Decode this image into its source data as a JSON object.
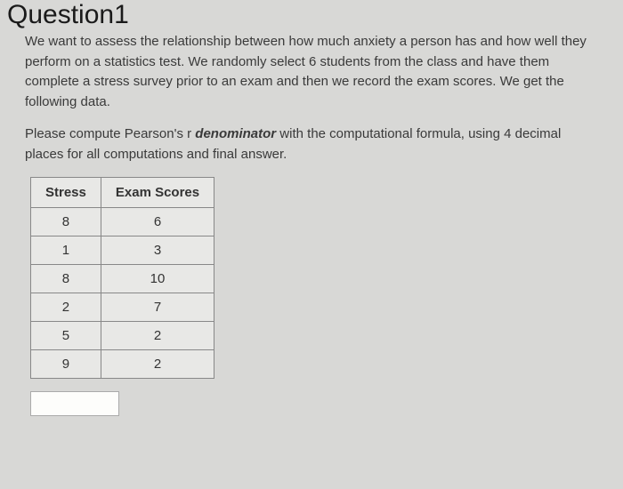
{
  "heading": "Question1",
  "paragraph1": "We want to assess the relationship between how much anxiety a person has and how well they perform on a statistics test. We randomly select 6 students from the class and have them complete a stress survey prior to an exam and then we record the exam scores. We get the following data.",
  "paragraph2_prefix": "Please compute Pearson's r ",
  "paragraph2_emph": "denominator",
  "paragraph2_suffix": " with the computational formula, using 4 decimal places for all computations and final answer.",
  "table": {
    "columns": [
      "Stress",
      "Exam Scores"
    ],
    "rows": [
      [
        "8",
        "6"
      ],
      [
        "1",
        "3"
      ],
      [
        "8",
        "10"
      ],
      [
        "2",
        "7"
      ],
      [
        "5",
        "2"
      ],
      [
        "9",
        "2"
      ]
    ],
    "border_color": "#888888",
    "background_color": "#e8e8e6",
    "header_fontweight": "bold",
    "cell_fontsize": 15,
    "text_color": "#333333"
  },
  "page_background": "#d8d8d6",
  "body_font_color": "#3a3a3a",
  "heading_fontsize": 30,
  "body_fontsize": 15
}
